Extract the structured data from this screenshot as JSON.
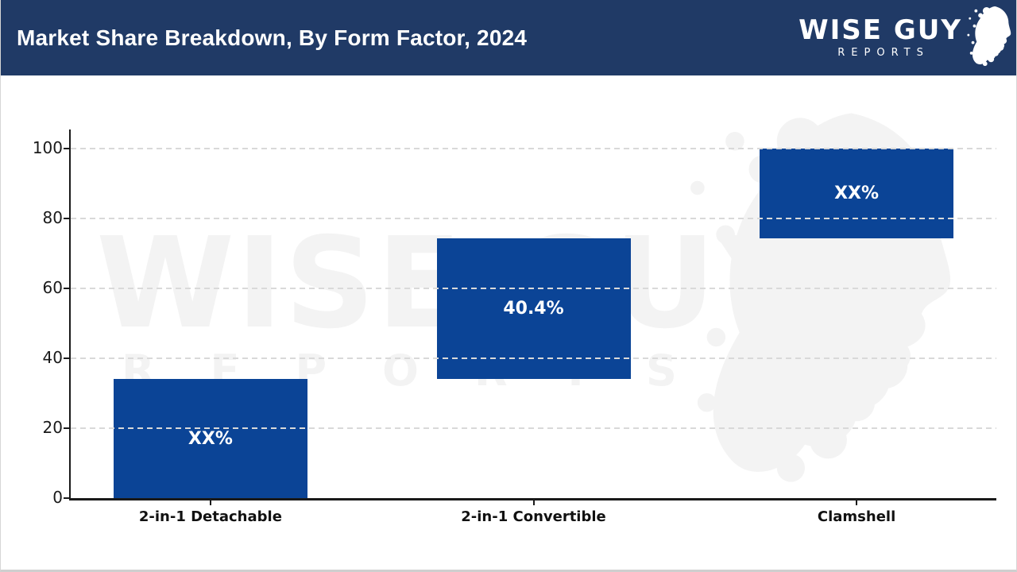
{
  "colors": {
    "header_bg": "#203a66",
    "bar": "#0b4496",
    "grid": "#d9d9d9",
    "axis": "#1a1a1a",
    "watermark": "#f3f3f3",
    "title_text": "#ffffff",
    "bar_label_text": "#ffffff"
  },
  "header": {
    "title": "Market Share Breakdown, By Form Factor, 2024",
    "logo": {
      "name": "WISE GUY",
      "tagline": "REPORTS"
    }
  },
  "watermark": {
    "line1": "WISE GUY",
    "line2": "REPORTS"
  },
  "chart_data": {
    "type": "bar",
    "subtype": "floating-segment-waterfall",
    "title": "Market Share Breakdown, By Form Factor, 2024",
    "categories": [
      "2-in-1 Detachable",
      "2-in-1 Convertible",
      "Clamshell"
    ],
    "series": [
      {
        "name": "Market share (%)",
        "segments": [
          {
            "category": "2-in-1 Detachable",
            "from": 0,
            "to": 34,
            "label": "XX%"
          },
          {
            "category": "2-in-1 Convertible",
            "from": 34,
            "to": 74.4,
            "label": "40.4%"
          },
          {
            "category": "Clamshell",
            "from": 74.4,
            "to": 100,
            "label": "XX%"
          }
        ]
      }
    ],
    "xlabel": "",
    "ylabel": "",
    "ylim": [
      0,
      105.5
    ],
    "yticks": [
      0,
      20,
      40,
      60,
      80,
      100
    ],
    "grid": "horizontal-dashed",
    "legend": "none"
  }
}
